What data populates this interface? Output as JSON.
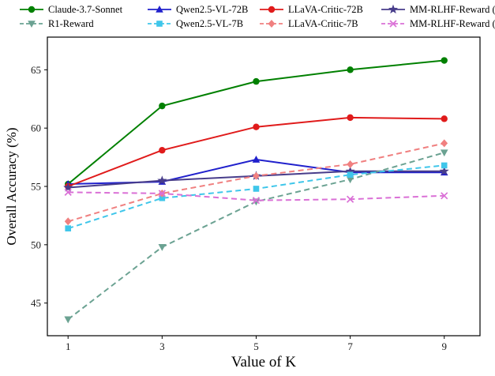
{
  "chart_data": {
    "type": "line",
    "title": "",
    "xlabel": "Value of K",
    "ylabel": "Overall Accuracy (%)",
    "x": [
      1,
      3,
      5,
      7,
      9
    ],
    "x_ticks": [
      "1",
      "3",
      "5",
      "7",
      "9"
    ],
    "y_ticks": [
      "45",
      "50",
      "55",
      "60",
      "65"
    ],
    "y_tick_values": [
      45,
      50,
      55,
      60,
      65
    ],
    "xlim": [
      0.56,
      9.76
    ],
    "ylim": [
      42.2,
      67.8
    ],
    "grid": false,
    "legend_position": "top",
    "axis_color": "#000000",
    "series": [
      {
        "name": "Claude-3.7-Sonnet",
        "color": "#008000",
        "style": "solid",
        "marker": "circle",
        "values": [
          55.2,
          61.9,
          64.0,
          65.0,
          65.8
        ]
      },
      {
        "name": "Qwen2.5-VL-72B",
        "color": "#2020cc",
        "style": "solid",
        "marker": "triangle-up",
        "values": [
          55.2,
          55.4,
          57.3,
          56.2,
          56.2
        ]
      },
      {
        "name": "LLaVA-Critic-72B",
        "color": "#e01b1b",
        "style": "solid",
        "marker": "circle",
        "values": [
          55.0,
          58.1,
          60.1,
          60.9,
          60.8
        ]
      },
      {
        "name": "MM-RLHF-Reward (Score)",
        "color": "#483d8b",
        "style": "solid",
        "marker": "star",
        "values": [
          54.9,
          55.5,
          55.9,
          56.3,
          56.3
        ]
      },
      {
        "name": "R1-Reward",
        "color": "#6ba292",
        "style": "dashed",
        "marker": "triangle-down",
        "values": [
          43.6,
          49.8,
          53.7,
          55.6,
          57.9
        ]
      },
      {
        "name": "Qwen2.5-VL-7B",
        "color": "#3fc6ea",
        "style": "dashed",
        "marker": "square",
        "values": [
          51.4,
          54.0,
          54.8,
          56.0,
          56.8
        ]
      },
      {
        "name": "LLaVA-Critic-7B",
        "color": "#f08080",
        "style": "dashed",
        "marker": "diamond",
        "values": [
          52.0,
          54.4,
          55.9,
          56.9,
          58.7
        ]
      },
      {
        "name": "MM-RLHF-Reward (Vote)",
        "color": "#da70d6",
        "style": "dashed",
        "marker": "x",
        "values": [
          54.5,
          54.4,
          53.8,
          53.9,
          54.2
        ]
      }
    ]
  }
}
